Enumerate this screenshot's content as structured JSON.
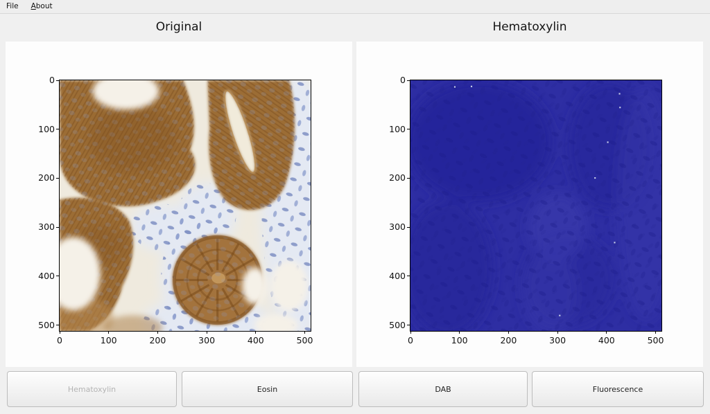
{
  "menu": {
    "items": [
      {
        "label": "File",
        "underline": null
      },
      {
        "label": "About",
        "underline": 0
      }
    ]
  },
  "panels": [
    {
      "title": "Original",
      "x_ticks": [
        0,
        100,
        200,
        300,
        400,
        500
      ],
      "y_ticks": [
        0,
        100,
        200,
        300,
        400,
        500
      ],
      "axis_max": 512,
      "image": "IHC-stained histology micrograph, brown DAB glands with blue nuclei"
    },
    {
      "title": "Hematoxylin",
      "x_ticks": [
        0,
        100,
        200,
        300,
        400,
        500
      ],
      "y_ticks": [
        0,
        100,
        200,
        300,
        400,
        500
      ],
      "axis_max": 512,
      "image": "Hematoxylin channel separation, uniform deep blue"
    }
  ],
  "buttons": [
    {
      "label": "Hematoxylin",
      "enabled": false
    },
    {
      "label": "Eosin",
      "enabled": true
    },
    {
      "label": "DAB",
      "enabled": true
    },
    {
      "label": "Fluorescence",
      "enabled": true
    }
  ],
  "colors": {
    "background": "#f0f0f0",
    "panel": "#fdfdfd",
    "hematoxylin_blue": "#2e2ea3",
    "dab_brown": "#9c6d36",
    "stroma_blue": "#e4e9f3",
    "disabled_text": "#b4b4b4"
  }
}
